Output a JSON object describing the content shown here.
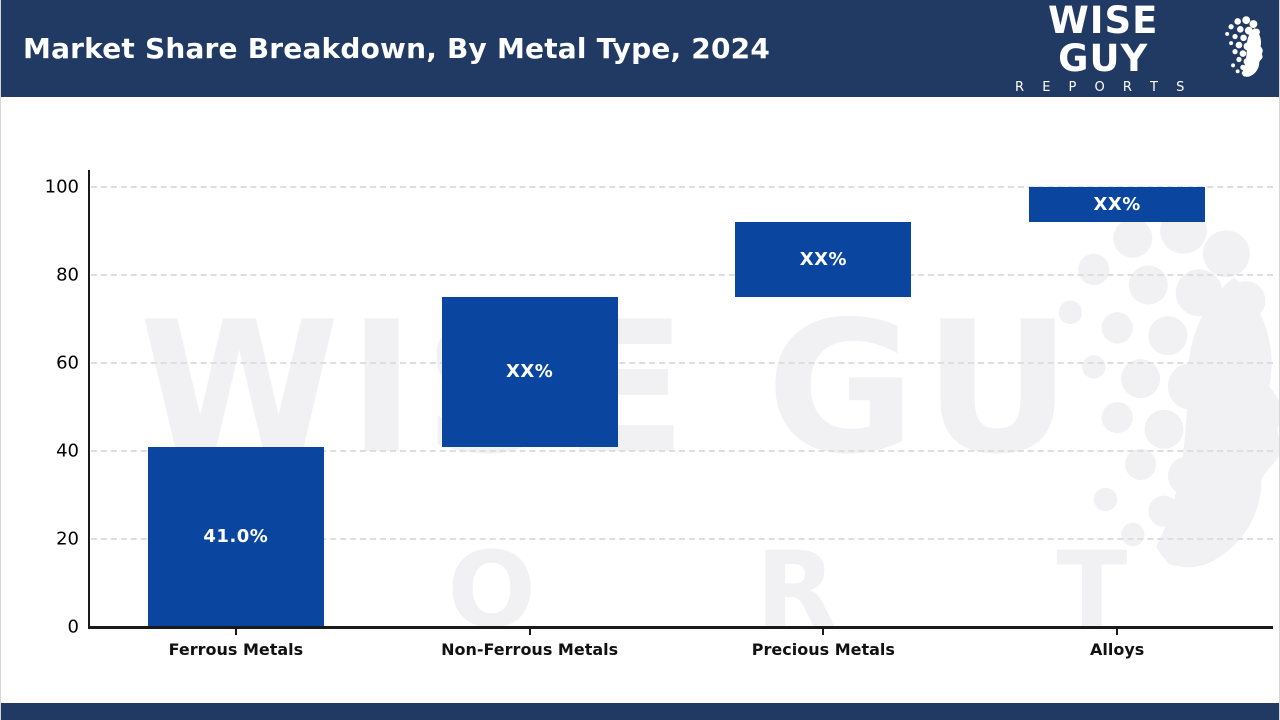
{
  "header": {
    "title": "Market Share Breakdown, By Metal Type, 2024",
    "bg_color": "#213A63",
    "logo": {
      "line1": "WISE GUY",
      "line2": "R E P O R T S"
    }
  },
  "watermark": {
    "line1": "WISE GU",
    "line2": "P O R T S"
  },
  "footer": {
    "bg_color": "#213A63"
  },
  "chart_data": {
    "type": "bar",
    "subtype": "waterfall",
    "title": "Market Share Breakdown, By Metal Type, 2024",
    "xlabel": "",
    "ylabel": "",
    "categories": [
      "Ferrous Metals",
      "Non-Ferrous Metals",
      "Precious Metals",
      "Alloys"
    ],
    "bars": [
      {
        "category": "Ferrous Metals",
        "start": 0,
        "end": 41,
        "value": 41.0,
        "label": "41.0%"
      },
      {
        "category": "Non-Ferrous Metals",
        "start": 41,
        "end": 75,
        "value": 34,
        "label": "XX%"
      },
      {
        "category": "Precious Metals",
        "start": 75,
        "end": 92,
        "value": 17,
        "label": "XX%"
      },
      {
        "category": "Alloys",
        "start": 92,
        "end": 100,
        "value": 8,
        "label": "XX%"
      }
    ],
    "yticks": [
      0,
      20,
      40,
      60,
      80,
      100
    ],
    "ylim": [
      0,
      105
    ],
    "bar_color": "#0A45A0",
    "grid": "horizontal-dashed",
    "grid_color": "#dedede",
    "legend_position": "none"
  }
}
